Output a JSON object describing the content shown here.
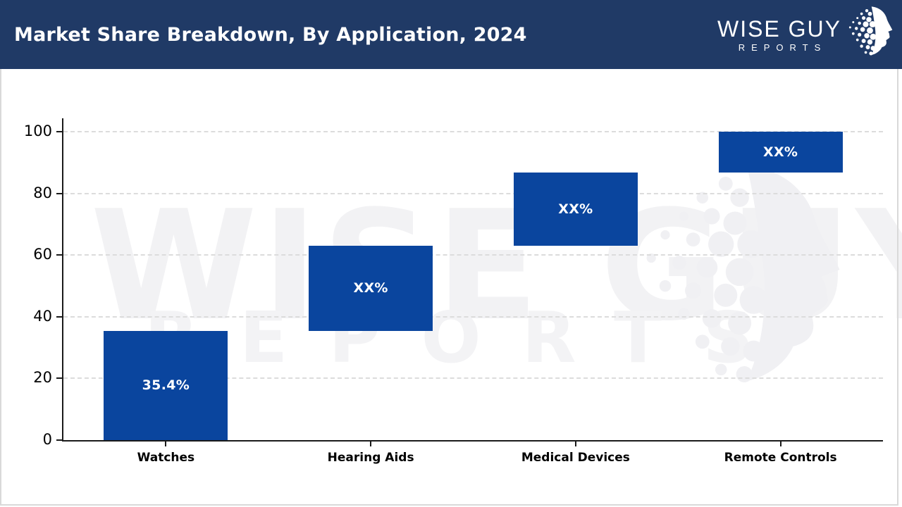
{
  "header": {
    "title": "Market Share Breakdown, By Application, 2024",
    "bg_color": "#203a66",
    "logo": {
      "wordmark": "WISE GUY",
      "subtitle": "REPORTS"
    }
  },
  "watermark": {
    "wordmark": "WISE GUY",
    "subtitle": "REPORTS"
  },
  "chart_data": {
    "type": "bar",
    "subtype": "floating-segment-waterfall",
    "title": "Market Share Breakdown, By Application, 2024",
    "categories": [
      "Watches",
      "Hearing Aids",
      "Medical Devices",
      "Remote Controls"
    ],
    "series": [
      {
        "name": "Market share (%)",
        "segments": [
          {
            "category": "Watches",
            "start": 0,
            "end": 35.4,
            "label": "35.4%"
          },
          {
            "category": "Hearing Aids",
            "start": 35.4,
            "end": 63,
            "label": "XX%"
          },
          {
            "category": "Medical Devices",
            "start": 63,
            "end": 86.8,
            "label": "XX%"
          },
          {
            "category": "Remote Controls",
            "start": 86.8,
            "end": 100,
            "label": "XX%"
          }
        ]
      }
    ],
    "xlabel": "",
    "ylabel": "",
    "ylim": [
      0,
      100
    ],
    "yticks": [
      0,
      20,
      40,
      60,
      80,
      100
    ],
    "grid": {
      "axis": "y",
      "style": "dashed",
      "color": "#dcdcdc"
    },
    "legend": "none",
    "bar_color": "#0a459e",
    "bar_label_color": "#ffffff",
    "axis_color": "#1a1a1a"
  }
}
